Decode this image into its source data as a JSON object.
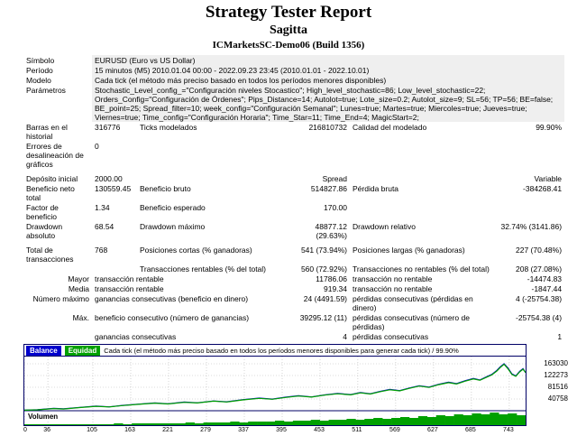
{
  "header": {
    "title": "Strategy Tester Report",
    "strategy": "Sagitta",
    "server": "ICMarketsSC-Demo06 (Build 1356)"
  },
  "table": {
    "rows": [
      {
        "cells": [
          {
            "t": "Símbolo",
            "c": "lbl"
          },
          {
            "t": "EURUSD (Euro vs US Dollar)",
            "span": 5,
            "c": "val shade"
          }
        ]
      },
      {
        "cells": [
          {
            "t": "Período",
            "c": "lbl"
          },
          {
            "t": "15 minutos (M5) 2010.01.04 00:00 - 2022.09.23 23:45 (2010.01.01 - 2022.10.01)",
            "span": 5,
            "c": "val shade"
          }
        ]
      },
      {
        "cells": [
          {
            "t": "Modelo",
            "c": "lbl"
          },
          {
            "t": "Cada tick (el método más preciso basado en todos los períodos menores disponibles)",
            "span": 5,
            "c": "val shade"
          }
        ]
      },
      {
        "cells": [
          {
            "t": "Parámetros",
            "c": "lbl"
          },
          {
            "t": "Stochastic_Level_config_=\"Configuración niveles Stocastico\"; High_level_stochastic=86; Low_level_stochastic=22; Orders_Config=\"Configuración de Órdenes\"; Pips_Distance=14; Autolot=true; Lote_size=0.2; Autolot_size=9; SL=56; TP=56; BE=false; BE_point=25; Spread_filter=10; week_config=\"Configuración Semanal\"; Lunes=true; Martes=true; Miercoles=true; Jueves=true; Viernes=true; Time_config=\"Configuración Horaria\"; Time_Star=11; Time_End=4; MagicStart=2;",
            "span": 5,
            "c": "val shade"
          }
        ]
      },
      {
        "cells": [
          {
            "t": "Barras en el historial",
            "c": "lbl"
          },
          {
            "t": "316776",
            "c": "val"
          },
          {
            "t": "Ticks modelados",
            "c": "lbl"
          },
          {
            "t": "216810732",
            "c": "num"
          },
          {
            "t": "Calidad del modelado",
            "c": "lbl"
          },
          {
            "t": "99.90%",
            "c": "num"
          }
        ]
      },
      {
        "cells": [
          {
            "t": "Errores de desalineación de gráficos",
            "c": "lbl"
          },
          {
            "t": "0",
            "c": "val"
          },
          {
            "t": "",
            "span": 4,
            "c": "lbl"
          }
        ]
      },
      {
        "spacer": true
      },
      {
        "cells": [
          {
            "t": "Depósito inicial",
            "c": "lbl"
          },
          {
            "t": "2000.00",
            "c": "val"
          },
          {
            "t": "",
            "c": "lbl"
          },
          {
            "t": "Spread",
            "c": "num"
          },
          {
            "t": "",
            "c": "lbl"
          },
          {
            "t": "Variable",
            "c": "num"
          }
        ]
      },
      {
        "cells": [
          {
            "t": "Beneficio neto total",
            "c": "lbl"
          },
          {
            "t": "130559.45",
            "c": "val"
          },
          {
            "t": "Beneficio bruto",
            "c": "lbl"
          },
          {
            "t": "514827.86",
            "c": "num"
          },
          {
            "t": "Pérdida bruta",
            "c": "lbl"
          },
          {
            "t": "-384268.41",
            "c": "num"
          }
        ]
      },
      {
        "cells": [
          {
            "t": "Factor de beneficio",
            "c": "lbl"
          },
          {
            "t": "1.34",
            "c": "val"
          },
          {
            "t": "Beneficio esperado",
            "c": "lbl"
          },
          {
            "t": "170.00",
            "c": "num"
          },
          {
            "t": "",
            "c": "lbl"
          },
          {
            "t": "",
            "c": "num"
          }
        ]
      },
      {
        "cells": [
          {
            "t": "Drawdown absoluto",
            "c": "lbl"
          },
          {
            "t": "68.54",
            "c": "val"
          },
          {
            "t": "Drawdown máximo",
            "c": "lbl"
          },
          {
            "t": "48877.12 (29.63%)",
            "c": "num"
          },
          {
            "t": "Drawdown relativo",
            "c": "lbl"
          },
          {
            "t": "32.74% (3141.86)",
            "c": "num"
          }
        ]
      },
      {
        "spacer": true
      },
      {
        "cells": [
          {
            "t": "Total de transacciones",
            "c": "lbl"
          },
          {
            "t": "768",
            "c": "val"
          },
          {
            "t": "Posiciones cortas (% ganadoras)",
            "c": "lbl"
          },
          {
            "t": "541 (73.94%)",
            "c": "num"
          },
          {
            "t": "Posiciones largas (% ganadoras)",
            "c": "lbl"
          },
          {
            "t": "227 (70.48%)",
            "c": "num"
          }
        ]
      },
      {
        "cells": [
          {
            "t": "",
            "c": "lbl"
          },
          {
            "t": "",
            "c": "lbl"
          },
          {
            "t": "Transacciones rentables (% del total)",
            "c": "lbl"
          },
          {
            "t": "560 (72.92%)",
            "c": "num"
          },
          {
            "t": "Transacciones no rentables (% del total)",
            "c": "lbl"
          },
          {
            "t": "208 (27.08%)",
            "c": "num"
          }
        ]
      },
      {
        "cells": [
          {
            "t": "Mayor",
            "c": "lblr"
          },
          {
            "t": "transacción rentable",
            "span": 2,
            "c": "lbl"
          },
          {
            "t": "11786.06",
            "c": "num"
          },
          {
            "t": "transacción no rentable",
            "c": "lbl"
          },
          {
            "t": "-14474.83",
            "c": "num"
          }
        ]
      },
      {
        "cells": [
          {
            "t": "Media",
            "c": "lblr"
          },
          {
            "t": "transacción rentable",
            "span": 2,
            "c": "lbl"
          },
          {
            "t": "919.34",
            "c": "num"
          },
          {
            "t": "transacción no rentable",
            "c": "lbl"
          },
          {
            "t": "-1847.44",
            "c": "num"
          }
        ]
      },
      {
        "cells": [
          {
            "t": "Número máximo",
            "c": "lblr"
          },
          {
            "t": "ganancias consecutivas (beneficio en dinero)",
            "span": 2,
            "c": "lbl"
          },
          {
            "t": "24 (4491.59)",
            "c": "num"
          },
          {
            "t": "pérdidas consecutivas (pérdidas en dinero)",
            "c": "lbl"
          },
          {
            "t": "4 (-25754.38)",
            "c": "num"
          }
        ]
      },
      {
        "cells": [
          {
            "t": "Máx.",
            "c": "lblr"
          },
          {
            "t": "beneficio consecutivo (número de ganancias)",
            "span": 2,
            "c": "lbl"
          },
          {
            "t": "39295.12 (11)",
            "c": "num"
          },
          {
            "t": "pérdidas consecutivas (número de pérdidas)",
            "c": "lbl"
          },
          {
            "t": "-25754.38 (4)",
            "c": "num"
          }
        ]
      },
      {
        "cells": [
          {
            "t": "",
            "c": "lbl"
          },
          {
            "t": "ganancias consecutivas",
            "span": 2,
            "c": "lbl"
          },
          {
            "t": "4",
            "c": "num"
          },
          {
            "t": "pérdidas consecutivas",
            "c": "lbl"
          },
          {
            "t": "1",
            "c": "num"
          }
        ]
      }
    ]
  },
  "chart_data": {
    "type": "line",
    "title": "",
    "legend": [
      {
        "label": "Balance",
        "color": "#0000cc"
      },
      {
        "label": "Equidad",
        "color": "#00a000"
      }
    ],
    "note": "Cada tick (el método más preciso basado en todos los períodos menores disponibles para generar cada tick) / 99.90%",
    "x_range": [
      0,
      768
    ],
    "y_range": [
      0,
      163030
    ],
    "y_ticks": [
      40758,
      81516,
      122273,
      163030
    ],
    "x_ticks": [
      0,
      36,
      105,
      163,
      221,
      279,
      337,
      395,
      453,
      511,
      569,
      627,
      685,
      743
    ],
    "series": [
      {
        "name": "Balance",
        "color": "#0000cc",
        "x": [
          0,
          20,
          45,
          60,
          85,
          110,
          130,
          150,
          175,
          200,
          220,
          245,
          265,
          290,
          310,
          335,
          360,
          380,
          400,
          420,
          440,
          460,
          480,
          500,
          515,
          530,
          545,
          560,
          575,
          590,
          605,
          620,
          635,
          650,
          662,
          675,
          688,
          698,
          708,
          716,
          724,
          729,
          735,
          741,
          747,
          753,
          759,
          764,
          768
        ],
        "y": [
          2000,
          3500,
          8000,
          6500,
          11500,
          16000,
          13500,
          18500,
          23000,
          27000,
          24000,
          30000,
          27500,
          34000,
          31000,
          38500,
          44000,
          40500,
          47000,
          52000,
          48000,
          55000,
          60000,
          56000,
          63000,
          59000,
          67000,
          74000,
          70000,
          79000,
          87000,
          82000,
          92000,
          99000,
          94000,
          104000,
          112000,
          107000,
          118000,
          126000,
          140000,
          152000,
          163030,
          148000,
          128000,
          121000,
          137000,
          146000,
          132559
        ]
      },
      {
        "name": "Equidad",
        "color": "#00a000",
        "x": [
          0,
          20,
          45,
          60,
          85,
          110,
          130,
          150,
          175,
          200,
          220,
          245,
          265,
          290,
          310,
          335,
          360,
          380,
          400,
          420,
          440,
          460,
          480,
          500,
          515,
          530,
          545,
          560,
          575,
          590,
          605,
          620,
          635,
          650,
          662,
          675,
          688,
          698,
          708,
          716,
          724,
          729,
          735,
          741,
          747,
          753,
          759,
          764,
          768
        ],
        "y": [
          2000,
          3200,
          7400,
          6100,
          10900,
          15300,
          13100,
          17800,
          22300,
          26200,
          23400,
          29200,
          26900,
          33200,
          30400,
          37600,
          43100,
          39800,
          46200,
          51000,
          47200,
          54100,
          59000,
          55200,
          62000,
          58100,
          66000,
          72800,
          69100,
          77800,
          85600,
          80900,
          90700,
          97600,
          92800,
          102500,
          110400,
          105700,
          116300,
          124200,
          138000,
          150000,
          161000,
          145500,
          126000,
          119500,
          135200,
          144300,
          132559
        ]
      }
    ],
    "volume": {
      "label": "Volumen",
      "color": "#00a000",
      "bars": [
        1,
        1,
        1,
        1,
        1,
        1,
        1,
        1,
        1,
        1,
        2,
        1,
        2,
        2,
        2,
        2,
        2,
        2,
        3,
        2,
        3,
        3,
        3,
        4,
        3,
        4,
        4,
        4,
        5,
        4,
        5,
        5,
        6,
        5,
        6,
        6,
        7,
        6,
        7,
        8,
        7,
        8,
        9,
        8,
        10,
        9,
        11,
        10,
        12,
        11,
        13,
        12,
        14,
        12,
        13,
        11
      ]
    }
  }
}
